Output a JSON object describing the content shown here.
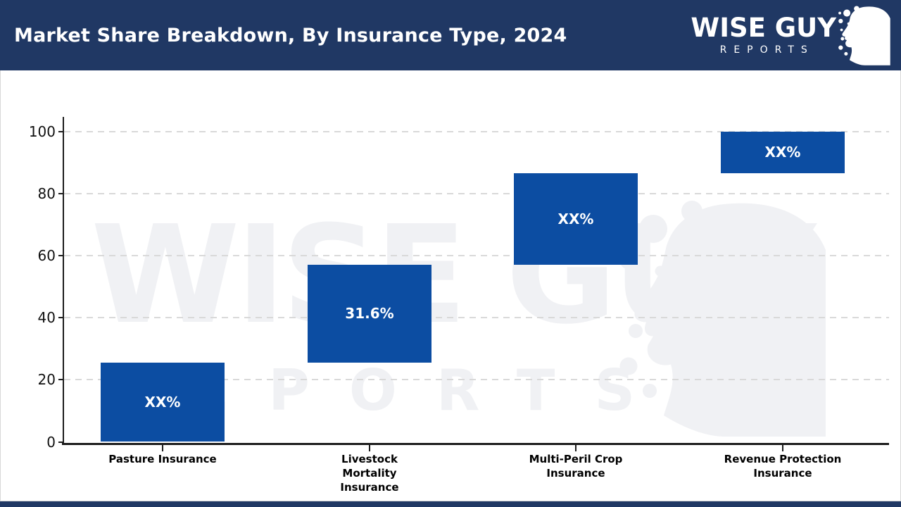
{
  "header": {
    "title": "Market Share Breakdown, By Insurance Type, 2024",
    "logo": {
      "line1": "WISE GUY",
      "line2": "REPORTS"
    }
  },
  "watermark": {
    "line1": "WISE GUY",
    "line2": "REPORTS"
  },
  "colors": {
    "header_bg": "#203864",
    "bar_blue": "#0c4da2",
    "grid_gray": "#d9d9d9",
    "axis_dark": "#1c1c1c",
    "watermark_gray": "#f0f1f4",
    "label_white": "#ffffff"
  },
  "chart_data": {
    "type": "bar",
    "subtype": "waterfall-stacked-segments",
    "title": "Market Share Breakdown, By Insurance Type, 2024",
    "xlabel": "",
    "ylabel": "",
    "ylim": [
      0,
      100
    ],
    "yticks": [
      0,
      20,
      40,
      60,
      80,
      100
    ],
    "grid": "horizontal-dashed",
    "legend": "none",
    "categories": [
      "Pasture Insurance",
      "Livestock Mortality Insurance",
      "Multi-Peril Crop Insurance",
      "Revenue Protection Insurance"
    ],
    "category_label_lines": [
      [
        "Pasture Insurance"
      ],
      [
        "Livestock",
        "Mortality",
        "Insurance"
      ],
      [
        "Multi-Peril Crop",
        "Insurance"
      ],
      [
        "Revenue Protection",
        "Insurance"
      ]
    ],
    "segments": [
      {
        "category": "Pasture Insurance",
        "start": 0,
        "end": 25.5,
        "value_label": "XX%"
      },
      {
        "category": "Livestock Mortality Insurance",
        "start": 25.5,
        "end": 57.1,
        "value_label": "31.6%"
      },
      {
        "category": "Multi-Peril Crop Insurance",
        "start": 57.1,
        "end": 86.6,
        "value_label": "XX%"
      },
      {
        "category": "Revenue Protection Insurance",
        "start": 86.6,
        "end": 100,
        "value_label": "XX%"
      }
    ]
  }
}
